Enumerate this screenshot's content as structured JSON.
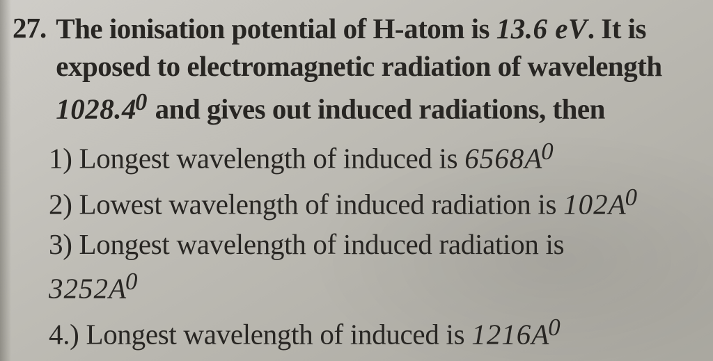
{
  "question": {
    "number": "27.",
    "stem_l1": "The ionisation potential of H-atom is ",
    "stem_ion": "13.6 eV",
    "stem_l1b": ". It is",
    "stem_l2": "exposed to electromagnetic radiation of wavelength",
    "stem_wave": "1028.4",
    "stem_wave_sup": "0",
    "stem_l3": " and gives out induced radiations, then"
  },
  "options": {
    "o1": {
      "label": "1) ",
      "text_a": "Longest wavelength of induced is ",
      "val": "6568A",
      "sup": "0"
    },
    "o2": {
      "label": "2) ",
      "text_a": "Lowest wavelength of induced radiation is ",
      "val": "102A",
      "sup": "0"
    },
    "o3": {
      "label": "3) ",
      "text_a": "Longest wavelength of induced radiation is",
      "val": "3252A",
      "sup": "0"
    },
    "o4": {
      "label": "4.) ",
      "text_a": "Longest wavelength of induced is ",
      "val": "1216A",
      "sup": "0"
    }
  },
  "style": {
    "bg_from": "#cfcdc8",
    "bg_to": "#aaa8a0",
    "text_color": "#252320",
    "stem_fontsize": 41,
    "opt_fontsize": 41
  }
}
